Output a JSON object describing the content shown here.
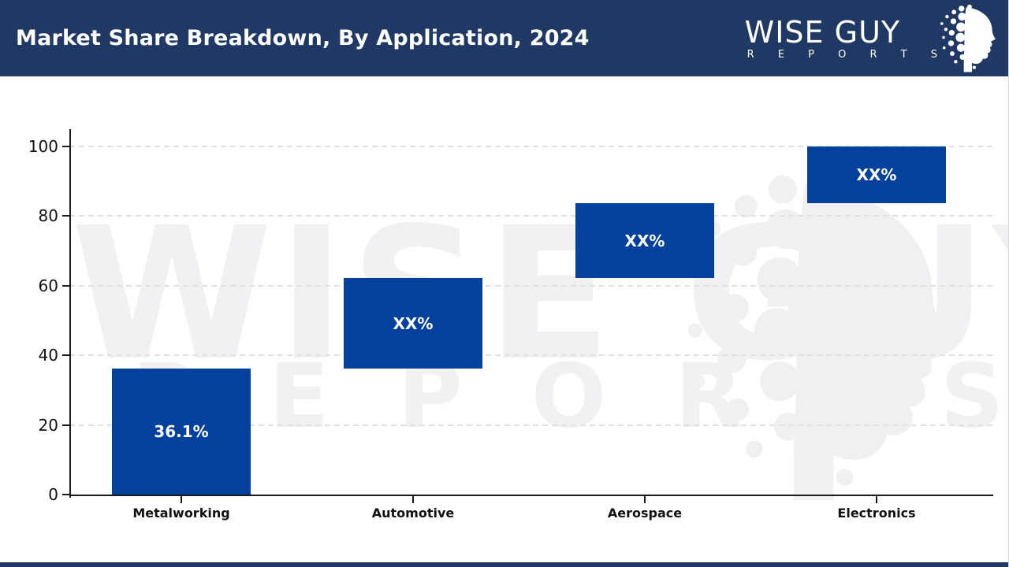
{
  "header": {
    "title": "Market Share Breakdown, By Application, 2024",
    "logo": {
      "line1": "WISE GUY",
      "line2": "R E P O R T S"
    }
  },
  "watermark": {
    "line1": "WISE GUY",
    "line2": "R E P O R T S"
  },
  "chart_data": {
    "type": "bar",
    "subtype": "waterfall",
    "title": "Market Share Breakdown, By Application, 2024",
    "categories": [
      "Metalworking",
      "Automotive",
      "Aerospace",
      "Electronics"
    ],
    "bars": [
      {
        "category": "Metalworking",
        "start": 0,
        "end": 36.1,
        "label": "36.1%"
      },
      {
        "category": "Automotive",
        "start": 36.1,
        "end": 62.2,
        "label": "XX%"
      },
      {
        "category": "Aerospace",
        "start": 62.2,
        "end": 83.7,
        "label": "XX%"
      },
      {
        "category": "Electronics",
        "start": 83.7,
        "end": 100,
        "label": "XX%"
      }
    ],
    "xlabel": "",
    "ylabel": "",
    "ylim": [
      0,
      105
    ],
    "yticks": [
      0,
      20,
      40,
      60,
      80,
      100
    ],
    "grid": true,
    "gridstyle": "dashed",
    "legend": false,
    "bar_color": "#04419c",
    "bar_label_color": "#ffffff"
  },
  "colors": {
    "header_bg": "#1f3864",
    "footer_bg": "#1f3864",
    "bar": "#04419c",
    "watermark": "#f0f0f3",
    "gridline": "#e1e1e1",
    "axis": "#1a1a1a",
    "title_text": "#ffffff"
  }
}
